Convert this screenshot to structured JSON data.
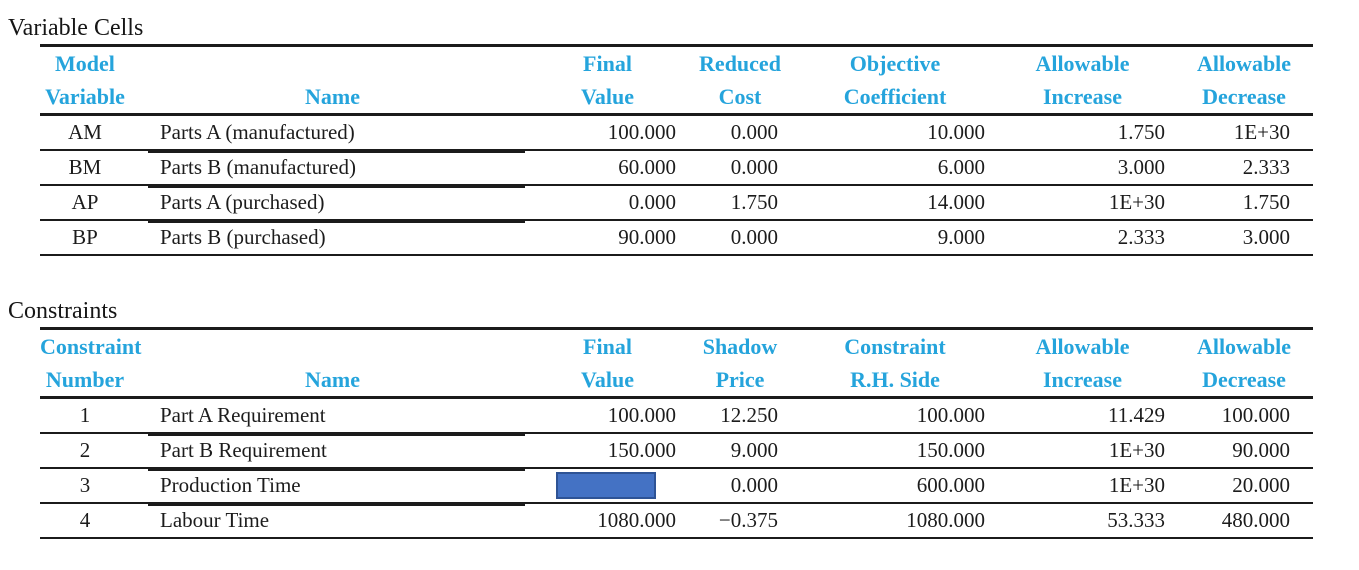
{
  "colors": {
    "header_text": "#25a4dc",
    "rule": "#1b1b1b",
    "redacted_fill": "#4472c4",
    "redacted_border": "#2e5395"
  },
  "variable_cells": {
    "section_title": "Variable Cells",
    "columns": [
      {
        "line1": "Model",
        "line2": "Variable"
      },
      {
        "line1": "",
        "line2": "Name"
      },
      {
        "line1": "Final",
        "line2": "Value"
      },
      {
        "line1": "Reduced",
        "line2": "Cost"
      },
      {
        "line1": "Objective",
        "line2": "Coefficient"
      },
      {
        "line1": "Allowable",
        "line2": "Increase"
      },
      {
        "line1": "Allowable",
        "line2": "Decrease"
      }
    ],
    "rows": [
      {
        "variable": "AM",
        "name": "Parts A (manufactured)",
        "final_value": "100.000",
        "reduced_cost": "0.000",
        "objective_coefficient": "10.000",
        "allowable_increase": "1.750",
        "allowable_decrease": "1E+30"
      },
      {
        "variable": "BM",
        "name": "Parts B (manufactured)",
        "final_value": "60.000",
        "reduced_cost": "0.000",
        "objective_coefficient": "6.000",
        "allowable_increase": "3.000",
        "allowable_decrease": "2.333"
      },
      {
        "variable": "AP",
        "name": "Parts A (purchased)",
        "final_value": "0.000",
        "reduced_cost": "1.750",
        "objective_coefficient": "14.000",
        "allowable_increase": "1E+30",
        "allowable_decrease": "1.750"
      },
      {
        "variable": "BP",
        "name": "Parts B (purchased)",
        "final_value": "90.000",
        "reduced_cost": "0.000",
        "objective_coefficient": "9.000",
        "allowable_increase": "2.333",
        "allowable_decrease": "3.000"
      }
    ]
  },
  "constraints": {
    "section_title": "Constraints",
    "columns": [
      {
        "line1": "Constraint",
        "line2": "Number"
      },
      {
        "line1": "",
        "line2": "Name"
      },
      {
        "line1": "Final",
        "line2": "Value"
      },
      {
        "line1": "Shadow",
        "line2": "Price"
      },
      {
        "line1": "Constraint",
        "line2": "R.H. Side"
      },
      {
        "line1": "Allowable",
        "line2": "Increase"
      },
      {
        "line1": "Allowable",
        "line2": "Decrease"
      }
    ],
    "rows": [
      {
        "number": "1",
        "name": "Part A Requirement",
        "final_value": "100.000",
        "final_value_redacted": false,
        "shadow_price": "12.250",
        "rh_side": "100.000",
        "allowable_increase": "11.429",
        "allowable_decrease": "100.000"
      },
      {
        "number": "2",
        "name": "Part B Requirement",
        "final_value": "150.000",
        "final_value_redacted": false,
        "shadow_price": "9.000",
        "rh_side": "150.000",
        "allowable_increase": "1E+30",
        "allowable_decrease": "90.000"
      },
      {
        "number": "3",
        "name": "Production Time",
        "final_value": "",
        "final_value_redacted": true,
        "shadow_price": "0.000",
        "rh_side": "600.000",
        "allowable_increase": "1E+30",
        "allowable_decrease": "20.000"
      },
      {
        "number": "4",
        "name": "Labour Time",
        "final_value": "1080.000",
        "final_value_redacted": false,
        "shadow_price": "−0.375",
        "rh_side": "1080.000",
        "allowable_increase": "53.333",
        "allowable_decrease": "480.000"
      }
    ]
  }
}
